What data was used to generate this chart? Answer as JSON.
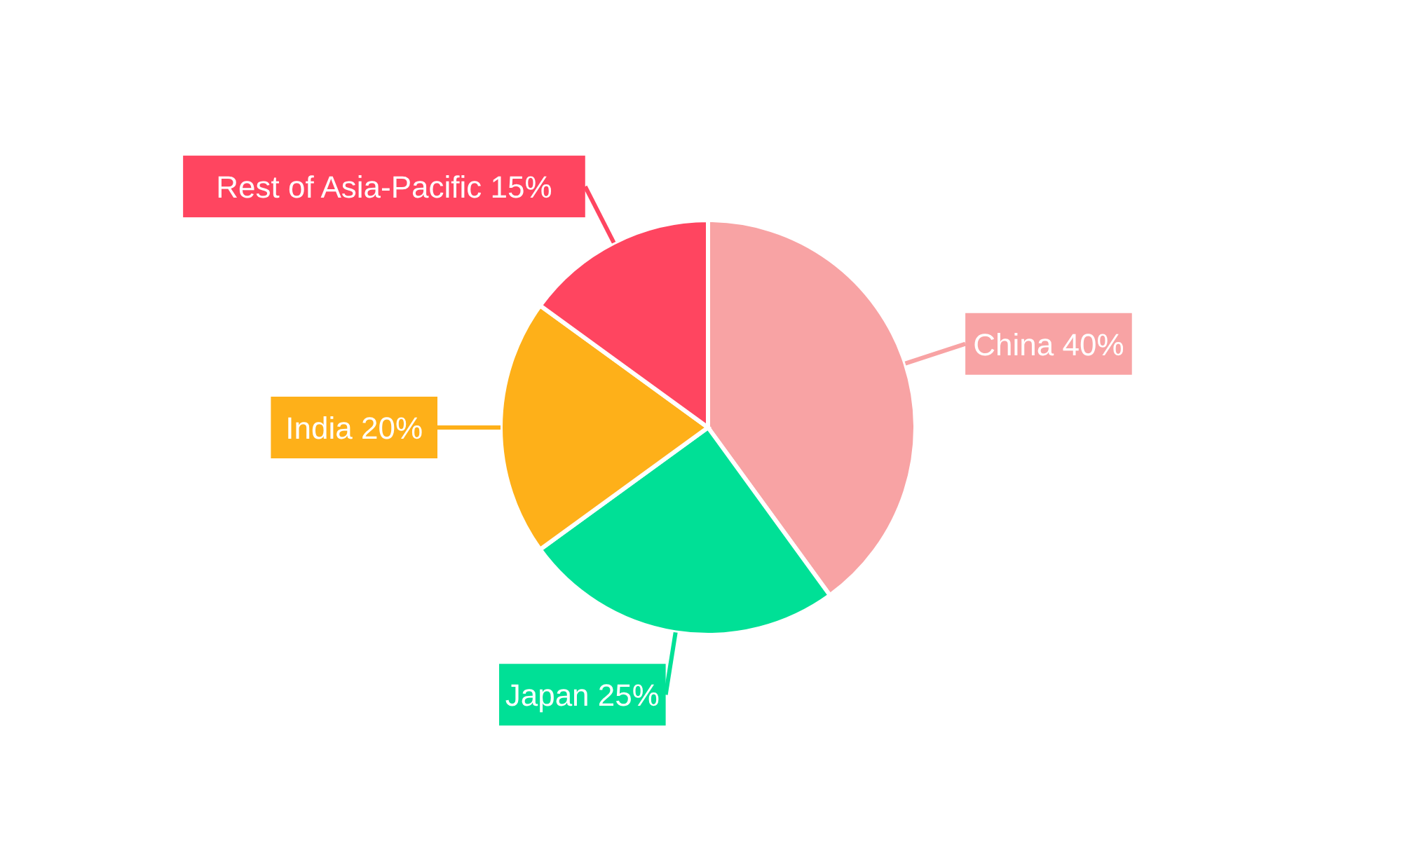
{
  "chart_data": {
    "type": "pie",
    "categories": [
      "China",
      "Japan",
      "India",
      "Rest of Asia-Pacific"
    ],
    "values": [
      40,
      25,
      20,
      15
    ],
    "colors": [
      "#f8a3a4",
      "#00e096",
      "#feb019",
      "#ff4560"
    ],
    "value_labels": [
      "40%",
      "25%",
      "20%",
      "15%"
    ],
    "legend": false
  }
}
